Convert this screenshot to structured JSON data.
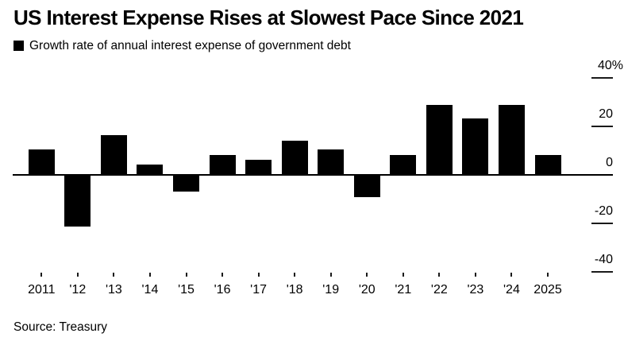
{
  "header": {
    "title": "US Interest Expense Rises at Slowest Pace Since 2021"
  },
  "legend": {
    "label": "Growth rate of annual interest expense of government debt",
    "swatch_color": "#000000"
  },
  "footer": {
    "source": "Source: Treasury"
  },
  "chart_data": {
    "type": "bar",
    "title": "US Interest Expense Rises at Slowest Pace Since 2021",
    "series_name": "Growth rate of annual interest expense of government debt",
    "categories": [
      "2011",
      "'12",
      "'13",
      "'14",
      "'15",
      "'16",
      "'17",
      "'18",
      "'19",
      "'20",
      "'21",
      "'22",
      "'23",
      "'24",
      "2025"
    ],
    "values": [
      10.4,
      -21.1,
      16.3,
      4.2,
      -6.8,
      8.2,
      6.1,
      14.2,
      10.4,
      -9.0,
      8.2,
      28.8,
      23.3,
      28.8,
      8.2
    ],
    "unit": "%",
    "xlabel": "",
    "ylabel": "",
    "ylim": [
      -40,
      40
    ],
    "y_ticks": [
      {
        "value": 40,
        "label": "40%"
      },
      {
        "value": 20,
        "label": "20"
      },
      {
        "value": 0,
        "label": "0"
      },
      {
        "value": -20,
        "label": "-20"
      },
      {
        "value": -40,
        "label": "-40"
      }
    ],
    "y_axis_side": "right",
    "bar_color": "#000000",
    "background": "#ffffff",
    "grid": "off",
    "legend_position": "top-left"
  }
}
